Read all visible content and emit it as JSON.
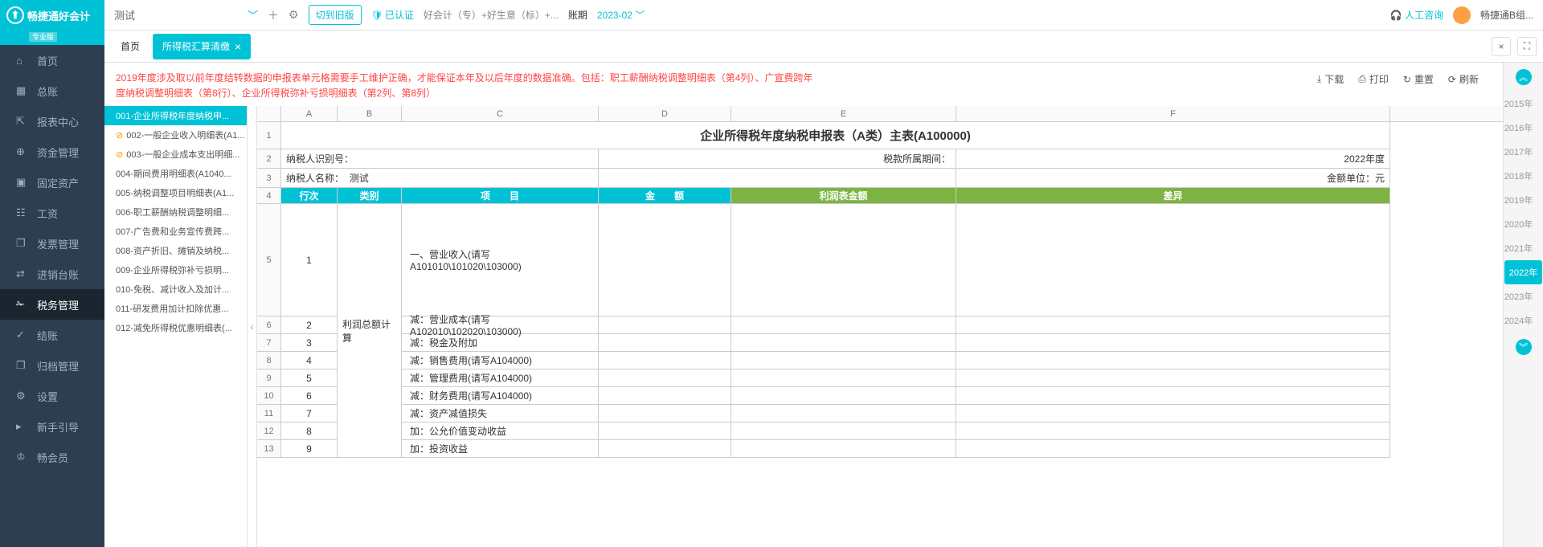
{
  "logo": {
    "text": "畅捷通好会计",
    "sub": "专业版"
  },
  "nav": [
    {
      "icon": "⌂",
      "label": "首页"
    },
    {
      "icon": "▦",
      "label": "总账"
    },
    {
      "icon": "⇱",
      "label": "报表中心"
    },
    {
      "icon": "⊕",
      "label": "资金管理"
    },
    {
      "icon": "▣",
      "label": "固定资产"
    },
    {
      "icon": "☷",
      "label": "工资"
    },
    {
      "icon": "❐",
      "label": "发票管理"
    },
    {
      "icon": "⇄",
      "label": "进销台账"
    },
    {
      "icon": "✁",
      "label": "税务管理",
      "active": true
    },
    {
      "icon": "✓",
      "label": "结账"
    },
    {
      "icon": "❒",
      "label": "归档管理"
    },
    {
      "icon": "⚙",
      "label": "设置"
    },
    {
      "icon": "▸",
      "label": "新手引导"
    },
    {
      "icon": "♔",
      "label": "畅会员"
    }
  ],
  "topbar": {
    "company": "测试",
    "switch": "切到旧版",
    "cert": "已认证",
    "products": "好会计（专）+好生意（标）+...",
    "period_label": "账期",
    "period_value": "2023-02",
    "support": "人工咨询",
    "user": "畅捷通B组..."
  },
  "tabs": {
    "home": "首页",
    "active": "所得税汇算清缴"
  },
  "warning": "2019年度涉及取以前年度结转数据的申报表单元格需要手工维护正确，才能保证本年及以后年度的数据准确。包括：职工薪酬纳税调整明细表（第4列）、广宣费跨年度纳税调整明细表（第8行）、企业所得税弥补亏损明细表（第2列、第8列）",
  "actions": {
    "download": "下载",
    "print": "打印",
    "reset": "重置",
    "refresh": "刷新"
  },
  "forms": [
    {
      "label": "001-企业所得税年度纳税申...",
      "active": true
    },
    {
      "label": "002-一般企业收入明细表(A1...",
      "warn": true
    },
    {
      "label": "003-一般企业成本支出明细...",
      "warn": true
    },
    {
      "label": "004-期间费用明细表(A1040..."
    },
    {
      "label": "005-纳税调整项目明细表(A1..."
    },
    {
      "label": "006-职工薪酬纳税调整明细..."
    },
    {
      "label": "007-广告费和业务宣传费跨..."
    },
    {
      "label": "008-资产折旧、摊销及纳税..."
    },
    {
      "label": "009-企业所得税弥补亏损明..."
    },
    {
      "label": "010-免税、减计收入及加计..."
    },
    {
      "label": "011-研发费用加计扣除优惠..."
    },
    {
      "label": "012-减免所得税优惠明细表(..."
    }
  ],
  "sheet": {
    "cols": [
      "A",
      "B",
      "C",
      "D",
      "E",
      "F"
    ],
    "title": "企业所得税年度纳税申报表（A类）主表(A100000)",
    "id_label": "纳税人识别号：",
    "period_label": "税款所属期间：",
    "period_value": "2022年度",
    "name_label": "纳税人名称：",
    "name_value": "测试",
    "unit_label": "金额单位：元",
    "headers": {
      "a": "行次",
      "b": "类别",
      "c": "项　　目",
      "d": "金　　额",
      "e": "利润表金额",
      "f": "差异"
    },
    "cat": "利润总额计算",
    "rows": [
      {
        "n": "5",
        "r": "1",
        "c": "一、营业收入(请写A101010\\101020\\103000)",
        "tall": true
      },
      {
        "n": "6",
        "r": "2",
        "c": "减：营业成本(请写A102010\\102020\\103000)"
      },
      {
        "n": "7",
        "r": "3",
        "c": "减：税金及附加"
      },
      {
        "n": "8",
        "r": "4",
        "c": "减：销售费用(请写A104000)"
      },
      {
        "n": "9",
        "r": "5",
        "c": "减：管理费用(请写A104000)"
      },
      {
        "n": "10",
        "r": "6",
        "c": "减：财务费用(请写A104000)"
      },
      {
        "n": "11",
        "r": "7",
        "c": "减：资产减值损失"
      },
      {
        "n": "12",
        "r": "8",
        "c": "加：公允价值变动收益"
      },
      {
        "n": "13",
        "r": "9",
        "c": "加：投资收益"
      }
    ]
  },
  "years": [
    "2015年",
    "2016年",
    "2017年",
    "2018年",
    "2019年",
    "2020年",
    "2021年",
    "2022年",
    "2023年",
    "2024年"
  ],
  "active_year": "2022年"
}
